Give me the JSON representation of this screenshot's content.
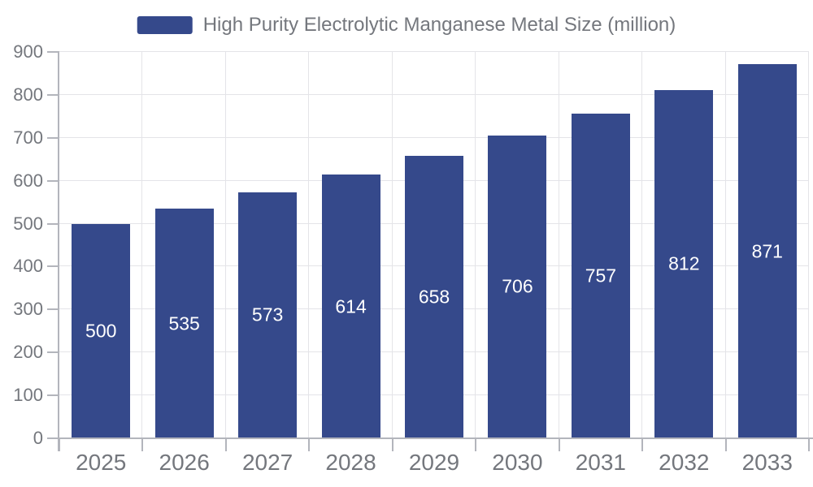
{
  "legend": {
    "series_label": "High Purity Electrolytic Manganese Metal Size (million)"
  },
  "colors": {
    "bar": "#35498b",
    "grid": "#e4e4e8",
    "axis": "#b3b5bc",
    "axis_text": "#74777d",
    "legend_text": "#74777d",
    "value_text": "#ffffff",
    "background": "#ffffff"
  },
  "chart_data": {
    "type": "bar",
    "title": "High Purity Electrolytic Manganese Metal Size (million)",
    "categories": [
      "2025",
      "2026",
      "2027",
      "2028",
      "2029",
      "2030",
      "2031",
      "2032",
      "2033"
    ],
    "values": [
      500,
      535,
      573,
      614,
      658,
      706,
      757,
      812,
      871
    ],
    "xlabel": "",
    "ylabel": "",
    "ylim": [
      0,
      900
    ],
    "yticks": [
      0,
      100,
      200,
      300,
      400,
      500,
      600,
      700,
      800,
      900
    ],
    "grid": true,
    "legend_position": "top-center",
    "value_label_position": "inside-center"
  }
}
